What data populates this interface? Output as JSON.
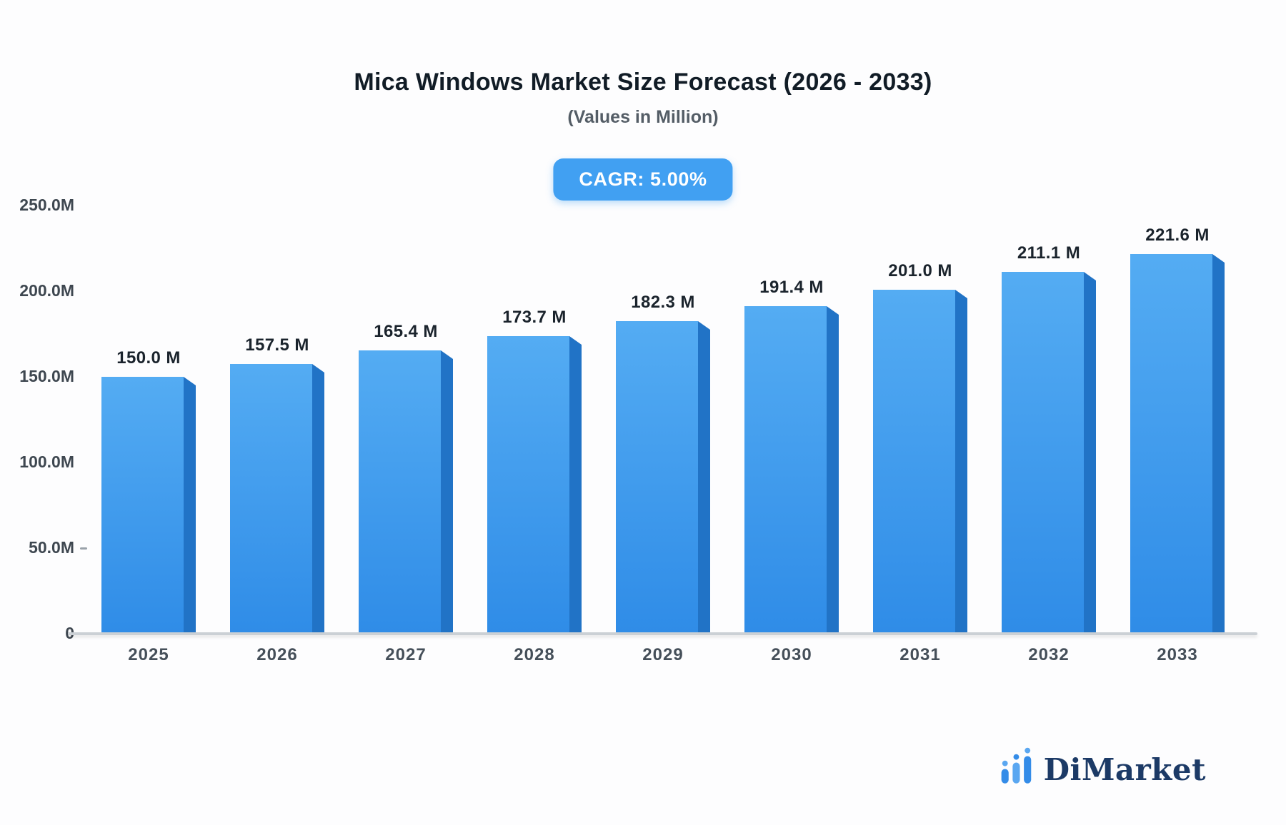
{
  "chart_data": {
    "type": "bar",
    "title": "Mica Windows Market Size Forecast (2026 - 2033)",
    "subtitle": "(Values in Million)",
    "categories": [
      "2025",
      "2026",
      "2027",
      "2028",
      "2029",
      "2030",
      "2031",
      "2032",
      "2033"
    ],
    "values": [
      150.0,
      157.5,
      165.4,
      173.7,
      182.3,
      191.4,
      201.0,
      211.1,
      221.6
    ],
    "value_labels": [
      "150.0 M",
      "157.5 M",
      "165.4 M",
      "173.7 M",
      "182.3 M",
      "191.4 M",
      "201.0 M",
      "211.1 M",
      "221.6 M"
    ],
    "xlabel": "",
    "ylabel": "",
    "ylim": [
      0,
      250
    ],
    "yticks": [
      {
        "label": "0",
        "value": 0
      },
      {
        "label": "50.0M",
        "value": 50,
        "dash": true
      },
      {
        "label": "100.0M",
        "value": 100
      },
      {
        "label": "150.0M",
        "value": 150
      },
      {
        "label": "200.0M",
        "value": 200
      },
      {
        "label": "250.0M",
        "value": 250
      }
    ],
    "legend": "none",
    "grid": "off",
    "colors": {
      "bar_front_top": "#54acf3",
      "bar_front_bottom": "#2f8ce7",
      "bar_side": "#2173c6",
      "axis_text": "#3e4750",
      "value_text": "#1a232c",
      "baseline": "#cbd0d5",
      "badge_bg": "#41a0f2",
      "logo_blue": "#348ce8",
      "logo_navy": "#1c3a66"
    }
  },
  "badge": {
    "label": "CAGR: 5.00%"
  },
  "logo": {
    "text": "DiMarket"
  }
}
